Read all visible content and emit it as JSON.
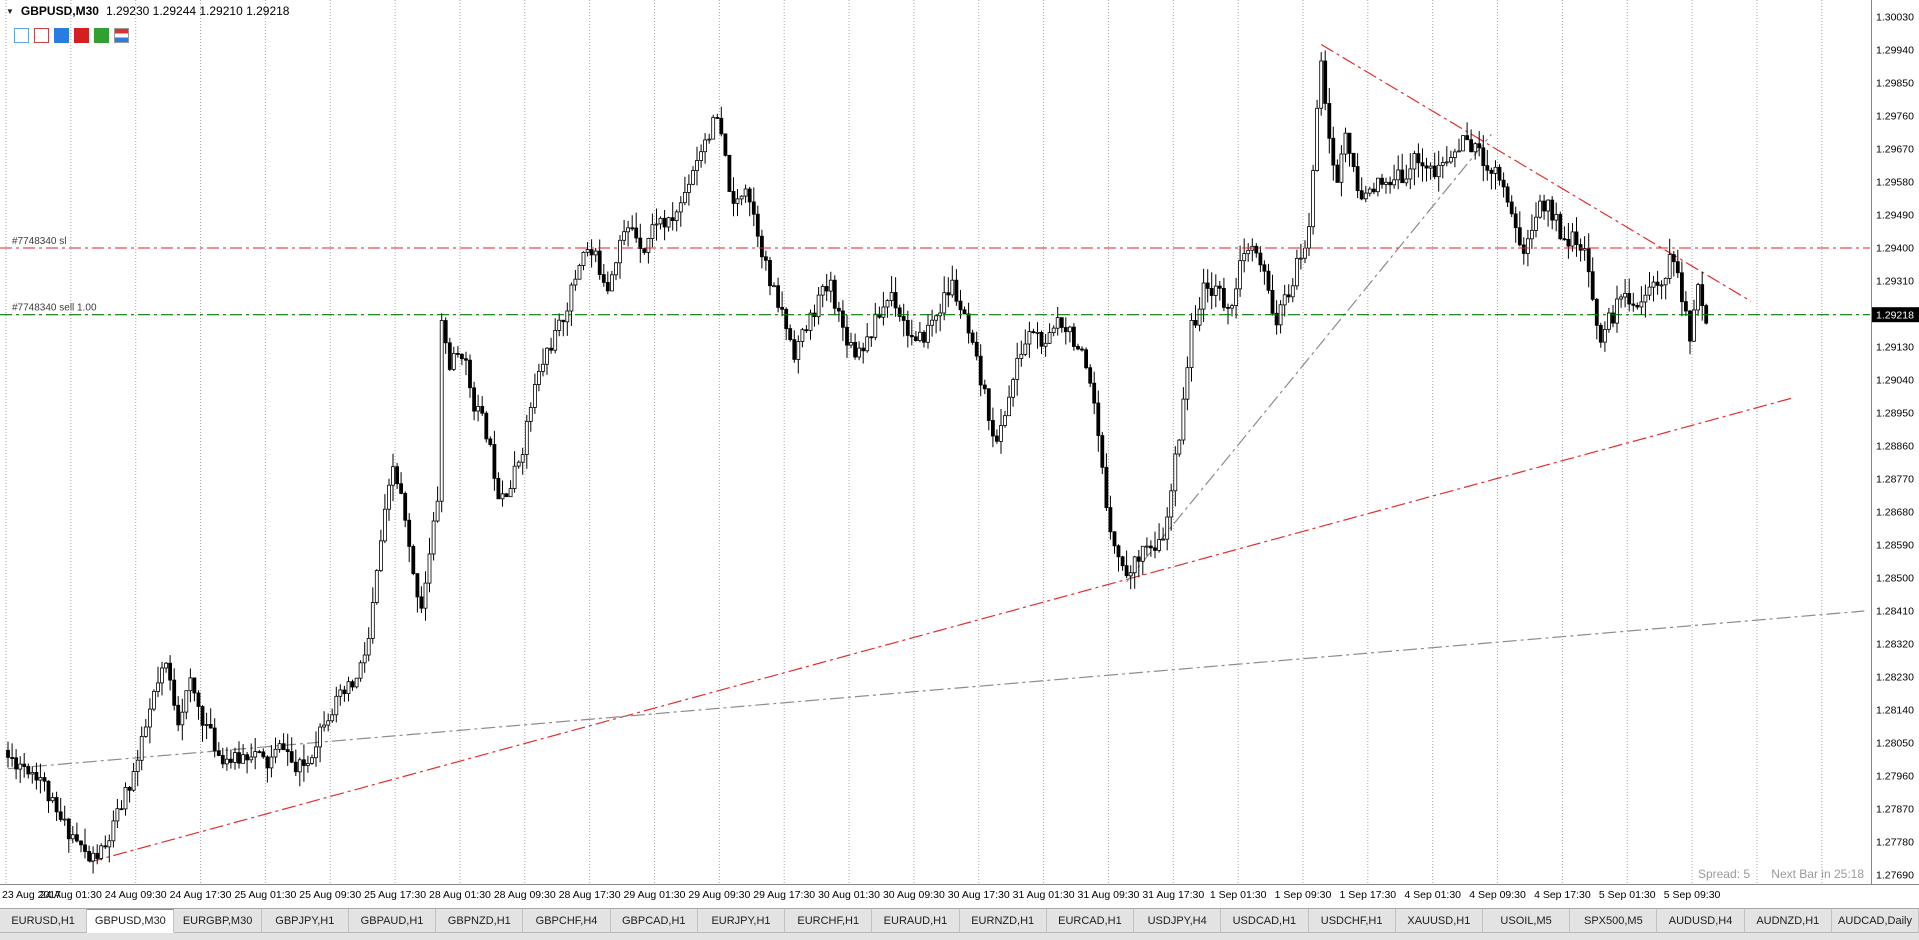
{
  "header": {
    "collapse_icon": "▼",
    "symbol_title": "GBPUSD,M30",
    "ohlc": "1.29230 1.29244 1.29210 1.29218"
  },
  "toolbar": {
    "buttons": [
      {
        "name": "square-outline-blue-icon",
        "fill": "#ffffff",
        "border": "#5aa7e0"
      },
      {
        "name": "square-outline-red-icon",
        "fill": "#ffffff",
        "border": "#d04040"
      },
      {
        "name": "square-solid-blue-icon",
        "fill": "#2a7de0",
        "border": "#2a7de0"
      },
      {
        "name": "square-solid-red-icon",
        "fill": "#d42020",
        "border": "#d42020"
      },
      {
        "name": "square-solid-green-icon",
        "fill": "#30a030",
        "border": "#30a030"
      },
      {
        "name": "square-striped-icon",
        "fill": "stripes",
        "border": "#9a9a9a"
      }
    ]
  },
  "chart_data": {
    "type": "candlestick",
    "title": "GBPUSD,M30",
    "symbol": "GBPUSD",
    "timeframe": "M30",
    "y_range": {
      "top": 1.3003,
      "bottom": 1.2769
    },
    "y_ticks": [
      1.3003,
      1.2994,
      1.2985,
      1.2976,
      1.2967,
      1.2958,
      1.2949,
      1.294,
      1.2931,
      1.2913,
      1.2904,
      1.2895,
      1.2886,
      1.2877,
      1.2868,
      1.2859,
      1.285,
      1.2841,
      1.2832,
      1.2823,
      1.2814,
      1.2805,
      1.2796,
      1.2787,
      1.2778,
      1.2769
    ],
    "x_labels": [
      "23 Aug 2017",
      "24 Aug 01:30",
      "24 Aug 09:30",
      "24 Aug 17:30",
      "25 Aug 01:30",
      "25 Aug 09:30",
      "25 Aug 17:30",
      "28 Aug 01:30",
      "28 Aug 09:30",
      "28 Aug 17:30",
      "29 Aug 01:30",
      "29 Aug 09:30",
      "29 Aug 17:30",
      "30 Aug 01:30",
      "30 Aug 09:30",
      "30 Aug 17:30",
      "31 Aug 01:30",
      "31 Aug 09:30",
      "31 Aug 17:30",
      "1 Sep 01:30",
      "1 Sep 09:30",
      "1 Sep 17:30",
      "4 Sep 01:30",
      "4 Sep 09:30",
      "4 Sep 17:30",
      "5 Sep 01:30",
      "5 Sep 09:30"
    ],
    "bars_per_label": 16,
    "num_bars": 420,
    "current_price": "1.29218",
    "current_price_value": 1.29218,
    "grid": {
      "vertical": true,
      "horizontal": false
    },
    "levels": [
      {
        "label": "#7748340 sl",
        "price": 1.294,
        "color": "#e02020",
        "style": "dashdot"
      },
      {
        "label": "#7748340 sell 1.00",
        "price": 1.29218,
        "color": "#007a00",
        "style": "dashdot"
      }
    ],
    "trendlines": [
      {
        "name": "support-ascending-red",
        "from": [
          20,
          1.27725
        ],
        "to": [
          440,
          1.2899
        ],
        "color": "#e03030"
      },
      {
        "name": "resistance-descending-red",
        "from": [
          324,
          1.29955
        ],
        "to": [
          430,
          1.29255
        ],
        "color": "#e03030"
      },
      {
        "name": "shallow-ascending-gray",
        "from": [
          0,
          1.2798
        ],
        "to": [
          458,
          1.2841
        ],
        "color": "#8c8c8c"
      },
      {
        "name": "steep-ascending-gray",
        "from": [
          276,
          1.2849
        ],
        "to": [
          366,
          1.2971
        ],
        "color": "#8c8c8c"
      }
    ],
    "waypoints": [
      [
        0,
        1.2801
      ],
      [
        4,
        1.2799
      ],
      [
        8,
        1.2796
      ],
      [
        12,
        1.2785
      ],
      [
        16,
        1.278
      ],
      [
        20,
        1.2773
      ],
      [
        24,
        1.2776
      ],
      [
        28,
        1.2788
      ],
      [
        32,
        1.28
      ],
      [
        36,
        1.2818
      ],
      [
        39,
        1.2826
      ],
      [
        42,
        1.2812
      ],
      [
        45,
        1.2821
      ],
      [
        48,
        1.2812
      ],
      [
        52,
        1.2802
      ],
      [
        56,
        1.28
      ],
      [
        60,
        1.2803
      ],
      [
        64,
        1.2799
      ],
      [
        68,
        1.2805
      ],
      [
        71,
        1.2797
      ],
      [
        74,
        1.28
      ],
      [
        78,
        1.2812
      ],
      [
        82,
        1.2817
      ],
      [
        86,
        1.2822
      ],
      [
        89,
        1.2833
      ],
      [
        92,
        1.286
      ],
      [
        95,
        1.288
      ],
      [
        97,
        1.2872
      ],
      [
        100,
        1.285
      ],
      [
        102,
        1.2843
      ],
      [
        104,
        1.2856
      ],
      [
        106,
        1.2872
      ],
      [
        107,
        1.292
      ],
      [
        109,
        1.2908
      ],
      [
        112,
        1.2912
      ],
      [
        115,
        1.2898
      ],
      [
        118,
        1.289
      ],
      [
        121,
        1.2874
      ],
      [
        124,
        1.2875
      ],
      [
        127,
        1.2886
      ],
      [
        130,
        1.2902
      ],
      [
        133,
        1.2912
      ],
      [
        136,
        1.2918
      ],
      [
        139,
        1.2928
      ],
      [
        142,
        1.294
      ],
      [
        145,
        1.2937
      ],
      [
        148,
        1.293
      ],
      [
        151,
        1.2942
      ],
      [
        154,
        1.2946
      ],
      [
        157,
        1.294
      ],
      [
        160,
        1.2948
      ],
      [
        163,
        1.2946
      ],
      [
        166,
        1.2952
      ],
      [
        169,
        1.2962
      ],
      [
        172,
        1.297
      ],
      [
        175,
        1.2975
      ],
      [
        177,
        1.2964
      ],
      [
        179,
        1.295
      ],
      [
        182,
        1.2958
      ],
      [
        185,
        1.2945
      ],
      [
        188,
        1.293
      ],
      [
        191,
        1.2922
      ],
      [
        194,
        1.2912
      ],
      [
        197,
        1.2918
      ],
      [
        200,
        1.2926
      ],
      [
        203,
        1.293
      ],
      [
        206,
        1.2918
      ],
      [
        209,
        1.2912
      ],
      [
        212,
        1.2915
      ],
      [
        215,
        1.2922
      ],
      [
        218,
        1.2928
      ],
      [
        221,
        1.292
      ],
      [
        224,
        1.2913
      ],
      [
        227,
        1.2918
      ],
      [
        230,
        1.2924
      ],
      [
        233,
        1.293
      ],
      [
        236,
        1.292
      ],
      [
        239,
        1.2908
      ],
      [
        242,
        1.2895
      ],
      [
        244,
        1.2886
      ],
      [
        247,
        1.29
      ],
      [
        250,
        1.2912
      ],
      [
        253,
        1.2918
      ],
      [
        256,
        1.2912
      ],
      [
        259,
        1.2921
      ],
      [
        262,
        1.2918
      ],
      [
        265,
        1.291
      ],
      [
        268,
        1.2896
      ],
      [
        271,
        1.287
      ],
      [
        274,
        1.2855
      ],
      [
        277,
        1.2851
      ],
      [
        280,
        1.286
      ],
      [
        283,
        1.2856
      ],
      [
        286,
        1.2865
      ],
      [
        289,
        1.289
      ],
      [
        292,
        1.2918
      ],
      [
        295,
        1.2928
      ],
      [
        298,
        1.293
      ],
      [
        301,
        1.2922
      ],
      [
        304,
        1.2935
      ],
      [
        307,
        1.294
      ],
      [
        310,
        1.2932
      ],
      [
        313,
        1.292
      ],
      [
        316,
        1.2928
      ],
      [
        319,
        1.2938
      ],
      [
        321,
        1.2944
      ],
      [
        323,
        1.298
      ],
      [
        324,
        1.2993
      ],
      [
        326,
        1.2968
      ],
      [
        328,
        1.2958
      ],
      [
        330,
        1.2972
      ],
      [
        332,
        1.296
      ],
      [
        334,
        1.2952
      ],
      [
        336,
        1.2958
      ],
      [
        340,
        1.2956
      ],
      [
        344,
        1.296
      ],
      [
        348,
        1.2965
      ],
      [
        352,
        1.296
      ],
      [
        356,
        1.2965
      ],
      [
        360,
        1.297
      ],
      [
        364,
        1.2964
      ],
      [
        368,
        1.296
      ],
      [
        371,
        1.295
      ],
      [
        374,
        1.2938
      ],
      [
        377,
        1.295
      ],
      [
        380,
        1.2952
      ],
      [
        383,
        1.2945
      ],
      [
        386,
        1.2942
      ],
      [
        389,
        1.2938
      ],
      [
        391,
        1.2925
      ],
      [
        393,
        1.2916
      ],
      [
        396,
        1.2922
      ],
      [
        399,
        1.2928
      ],
      [
        402,
        1.2925
      ],
      [
        405,
        1.2928
      ],
      [
        408,
        1.2932
      ],
      [
        411,
        1.2938
      ],
      [
        413,
        1.2925
      ],
      [
        415,
        1.2917
      ],
      [
        417,
        1.2928
      ],
      [
        419,
        1.29218
      ]
    ]
  },
  "status": {
    "spread_label": "Spread: 5",
    "next_bar_label": "Next Bar in 25:18"
  },
  "tabs": {
    "items": [
      {
        "label": "EURUSD,H1",
        "active": false
      },
      {
        "label": "GBPUSD,M30",
        "active": true
      },
      {
        "label": "EURGBP,M30",
        "active": false
      },
      {
        "label": "GBPJPY,H1",
        "active": false
      },
      {
        "label": "GBPAUD,H1",
        "active": false
      },
      {
        "label": "GBPNZD,H1",
        "active": false
      },
      {
        "label": "GBPCHF,H4",
        "active": false
      },
      {
        "label": "GBPCAD,H1",
        "active": false
      },
      {
        "label": "EURJPY,H1",
        "active": false
      },
      {
        "label": "EURCHF,H1",
        "active": false
      },
      {
        "label": "EURAUD,H1",
        "active": false
      },
      {
        "label": "EURNZD,H1",
        "active": false
      },
      {
        "label": "EURCAD,H1",
        "active": false
      },
      {
        "label": "USDJPY,H4",
        "active": false
      },
      {
        "label": "USDCAD,H1",
        "active": false
      },
      {
        "label": "USDCHF,H1",
        "active": false
      },
      {
        "label": "XAUUSD,H1",
        "active": false
      },
      {
        "label": "USOIL,M5",
        "active": false
      },
      {
        "label": "SPX500,M5",
        "active": false
      },
      {
        "label": "AUDUSD,H4",
        "active": false
      },
      {
        "label": "AUDNZD,H1",
        "active": false
      },
      {
        "label": "AUDCAD,Daily",
        "active": false
      }
    ]
  }
}
